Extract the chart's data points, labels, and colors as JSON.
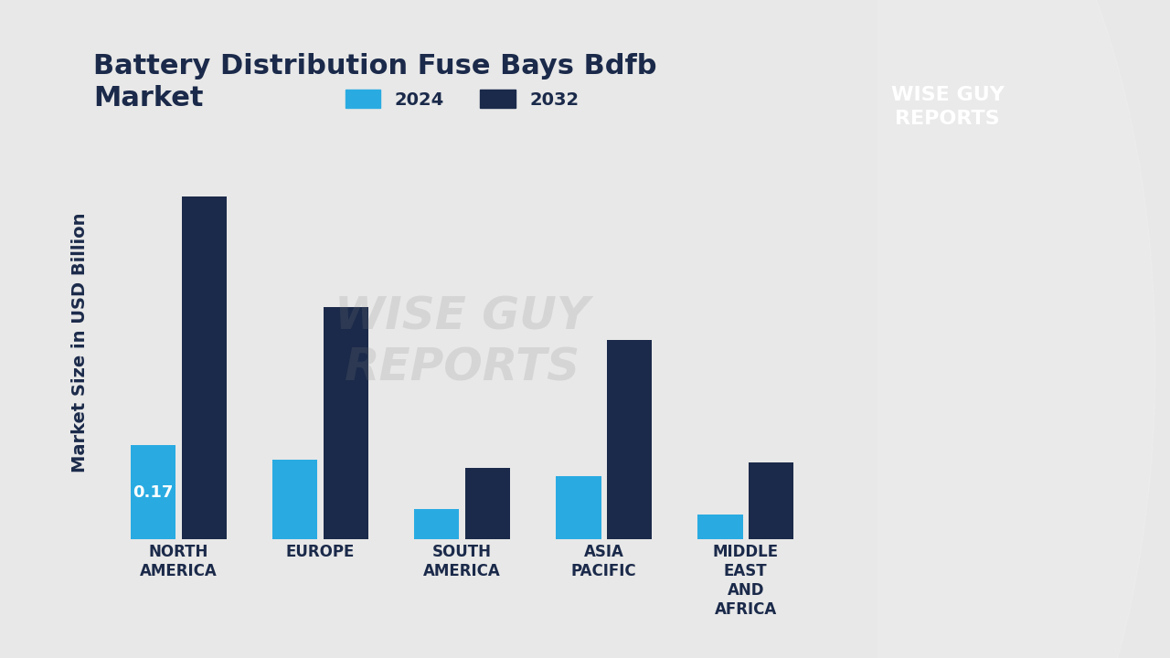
{
  "title": "Battery Distribution Fuse Bays Bdfb\nMarket",
  "ylabel": "Market Size in USD Billion",
  "categories": [
    "NORTH\nAMERICA",
    "EUROPE",
    "SOUTH\nAMERICA",
    "ASIA\nPACIFIC",
    "MIDDLE\nEAST\nAND\nAFRICA"
  ],
  "values_2024": [
    0.17,
    0.145,
    0.055,
    0.115,
    0.045
  ],
  "values_2032": [
    0.62,
    0.42,
    0.13,
    0.36,
    0.14
  ],
  "color_2024": "#29ABE2",
  "color_2032": "#1B2A4A",
  "bar_annotation_value": "0.17",
  "bar_annotation_index": 0,
  "bg_color": "#E8E8E8",
  "right_bg_color": "#1B2A4A",
  "title_color": "#1B2A4A",
  "legend_labels": [
    "2024",
    "2032"
  ],
  "title_fontsize": 22,
  "ylabel_fontsize": 14,
  "tick_fontsize": 12,
  "legend_fontsize": 14,
  "annotation_fontsize": 13
}
